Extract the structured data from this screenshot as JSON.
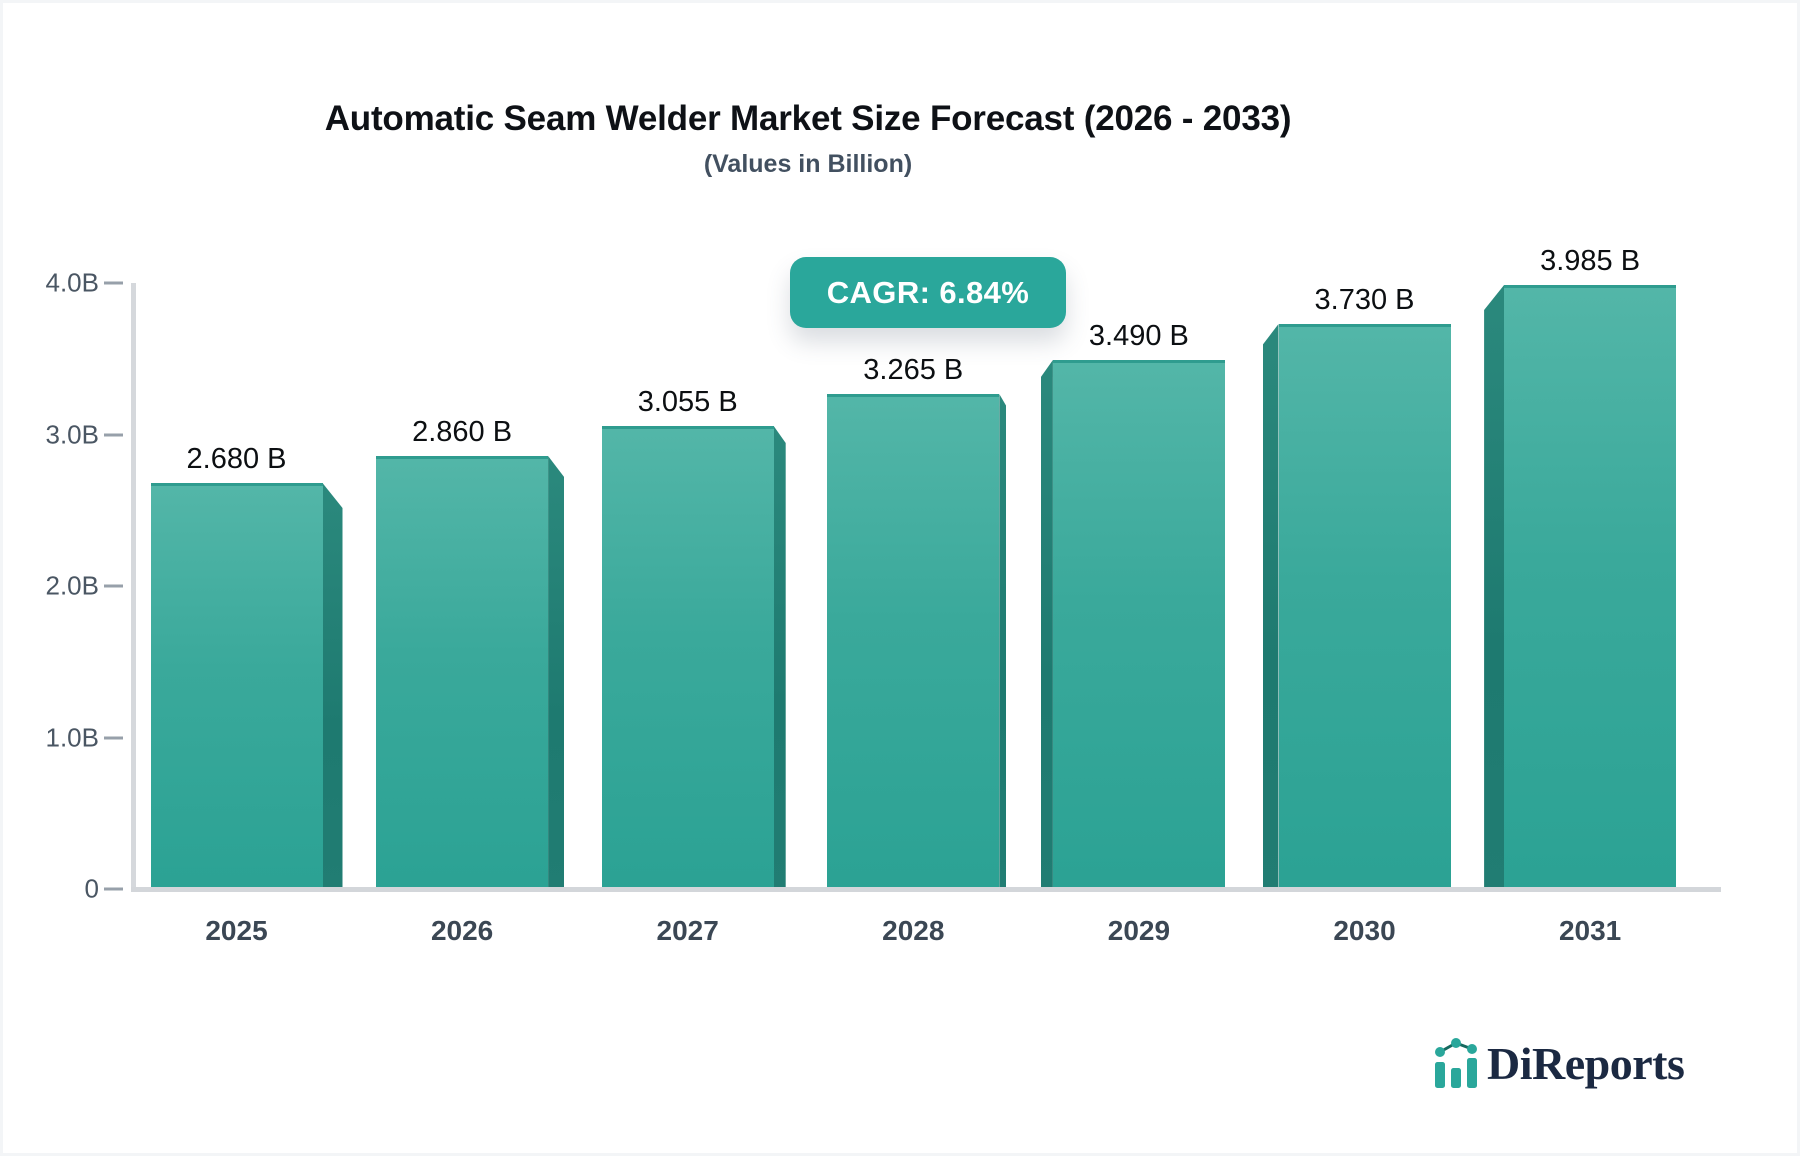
{
  "chart_data": {
    "type": "bar",
    "title": "Automatic Seam Welder Market Size Forecast (2026 - 2033)",
    "subtitle": "(Values in Billion)",
    "categories": [
      "2025",
      "2026",
      "2027",
      "2028",
      "2029",
      "2030",
      "2031"
    ],
    "values": [
      2.68,
      2.86,
      3.055,
      3.265,
      3.49,
      3.73,
      3.985
    ],
    "value_labels": [
      "2.680 B",
      "2.860 B",
      "3.055 B",
      "3.265 B",
      "3.490 B",
      "3.730 B",
      "3.985 B"
    ],
    "annotation": "CAGR: 6.84%",
    "xlabel": "",
    "ylabel": "",
    "ylim": [
      0,
      4.0
    ],
    "yticks": [
      {
        "value": 0,
        "label": "0"
      },
      {
        "value": 1,
        "label": "1.0B"
      },
      {
        "value": 2,
        "label": "2.0B"
      },
      {
        "value": 3,
        "label": "3.0B"
      },
      {
        "value": 4,
        "label": "4.0B"
      }
    ],
    "grid": false,
    "legend": "none"
  },
  "badge": {
    "label": "CAGR: 6.84%"
  },
  "logo": {
    "text": "DiReports"
  },
  "colors": {
    "bar_face_top": "#53b6a8",
    "bar_face_bottom": "#2ba294",
    "bar_side": "#1f7d73",
    "badge_bg": "#2aa79b",
    "axis_line": "#d5d8dc",
    "tick_dash": "#97a0aa",
    "value_label": "#0c0f12",
    "category_label": "#3b4754",
    "logo_navy": "#1b2942",
    "logo_teal": "#2aa79b"
  }
}
